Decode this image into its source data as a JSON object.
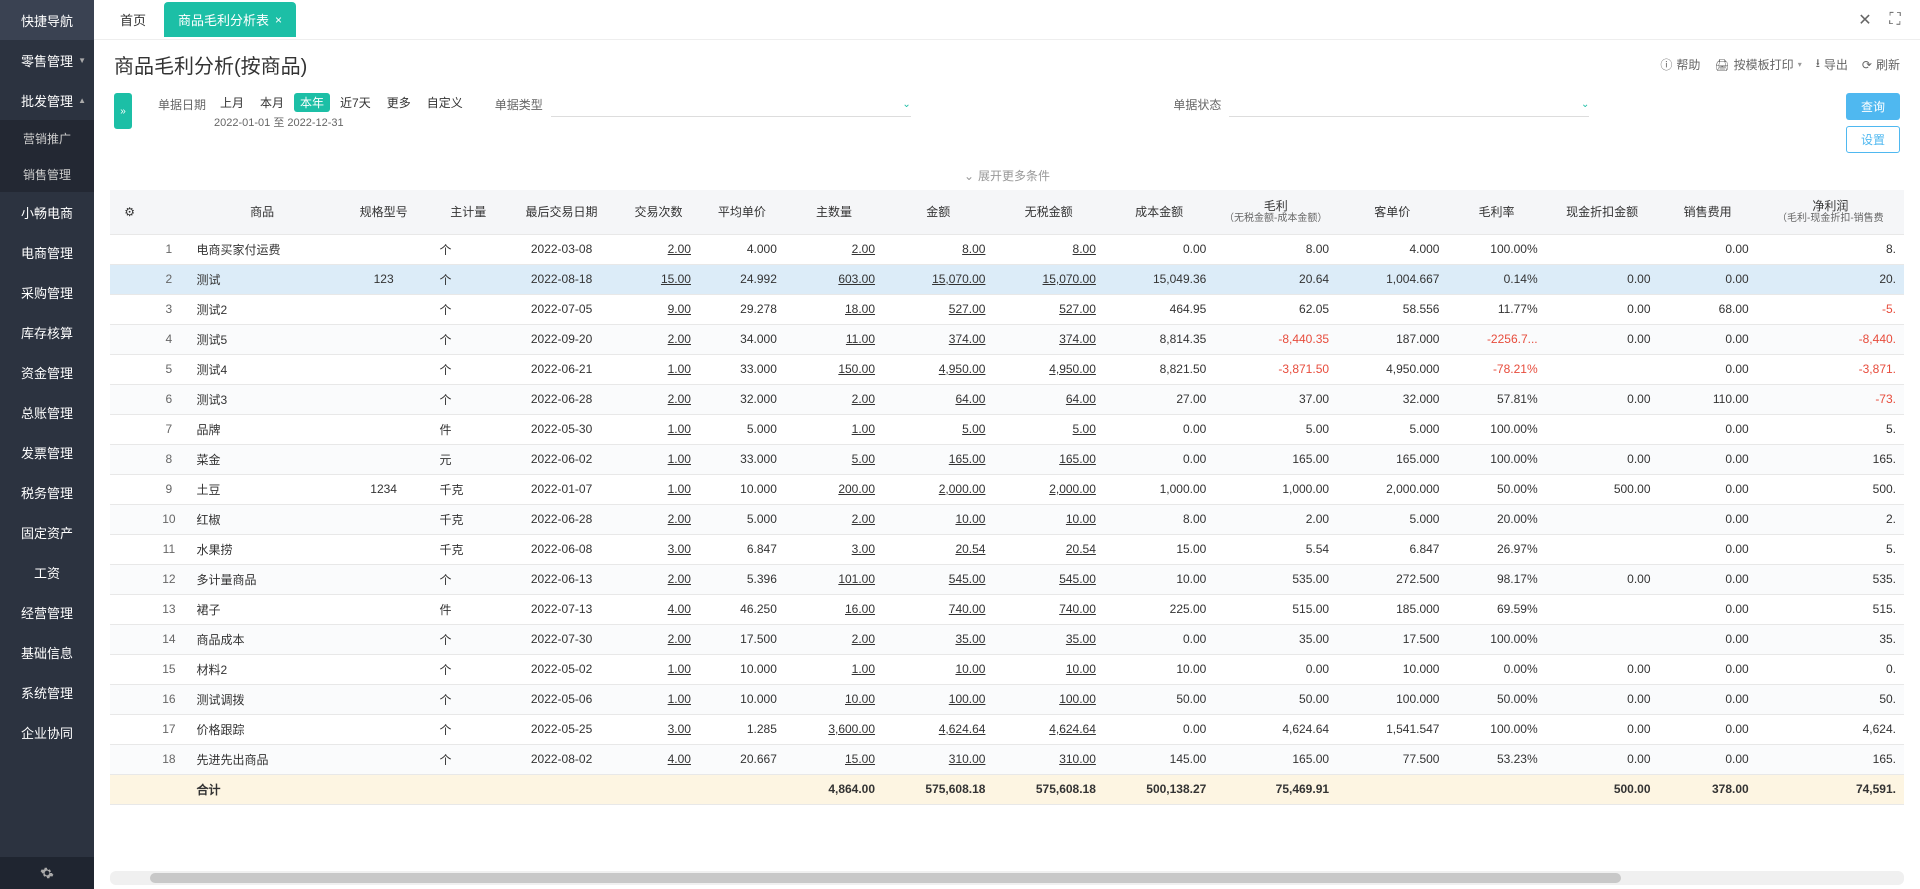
{
  "sidebar": {
    "items": [
      {
        "label": "快捷导航",
        "arrow": ""
      },
      {
        "label": "零售管理",
        "arrow": "▼"
      },
      {
        "label": "批发管理",
        "arrow": "▲",
        "expanded": true,
        "children": [
          {
            "label": "营销推广"
          },
          {
            "label": "销售管理"
          }
        ]
      },
      {
        "label": "小畅电商",
        "arrow": ""
      },
      {
        "label": "电商管理",
        "arrow": ""
      },
      {
        "label": "采购管理",
        "arrow": ""
      },
      {
        "label": "库存核算",
        "arrow": ""
      },
      {
        "label": "资金管理",
        "arrow": ""
      },
      {
        "label": "总账管理",
        "arrow": ""
      },
      {
        "label": "发票管理",
        "arrow": ""
      },
      {
        "label": "税务管理",
        "arrow": ""
      },
      {
        "label": "固定资产",
        "arrow": ""
      },
      {
        "label": "工资",
        "arrow": ""
      },
      {
        "label": "经营管理",
        "arrow": ""
      },
      {
        "label": "基础信息",
        "arrow": ""
      },
      {
        "label": "系统管理",
        "arrow": ""
      },
      {
        "label": "企业协同",
        "arrow": ""
      }
    ]
  },
  "tabs": {
    "home": "首页",
    "active": "商品毛利分析表"
  },
  "page": {
    "title": "商品毛利分析(按商品)",
    "actions": {
      "help": "帮助",
      "print": "按模板打印",
      "export": "导出",
      "refresh": "刷新"
    }
  },
  "filters": {
    "date_label": "单据日期",
    "date_opts": [
      "上月",
      "本月",
      "本年",
      "近7天",
      "更多",
      "自定义"
    ],
    "date_active": "本年",
    "date_range": "2022-01-01 至 2022-12-31",
    "doctype_label": "单据类型",
    "docstatus_label": "单据状态",
    "query": "查询",
    "settings": "设置",
    "more": "展开更多条件"
  },
  "columns": [
    {
      "key": "gear",
      "label": "⚙",
      "cls": "c-gear"
    },
    {
      "key": "idx",
      "label": "",
      "cls": "c-idx"
    },
    {
      "key": "name",
      "label": "商品",
      "cls": "c-name"
    },
    {
      "key": "spec",
      "label": "规格型号",
      "cls": "c-spec"
    },
    {
      "key": "unit",
      "label": "主计量",
      "cls": "c-unit"
    },
    {
      "key": "date",
      "label": "最后交易日期",
      "cls": "c-date"
    },
    {
      "key": "tx",
      "label": "交易次数",
      "cls": "c-tx"
    },
    {
      "key": "avgp",
      "label": "平均单价",
      "cls": "c-avgp"
    },
    {
      "key": "qty",
      "label": "主数量",
      "cls": "c-qty"
    },
    {
      "key": "amt",
      "label": "金额",
      "cls": "c-amt"
    },
    {
      "key": "notax",
      "label": "无税金额",
      "cls": "c-notax"
    },
    {
      "key": "cost",
      "label": "成本金额",
      "cls": "c-cost"
    },
    {
      "key": "gross",
      "label": "毛利",
      "sub": "（无税金额-成本金额）",
      "cls": "c-gross"
    },
    {
      "key": "unitp",
      "label": "客单价",
      "cls": "c-unitp"
    },
    {
      "key": "rate",
      "label": "毛利率",
      "cls": "c-rate"
    },
    {
      "key": "disc",
      "label": "现金折扣金额",
      "cls": "c-disc"
    },
    {
      "key": "fee",
      "label": "销售费用",
      "cls": "c-fee"
    },
    {
      "key": "net",
      "label": "净利润",
      "sub": "（毛利-现金折扣-销售费",
      "cls": "c-net"
    }
  ],
  "rows": [
    {
      "idx": 1,
      "name": "电商买家付运费",
      "spec": "",
      "unit": "个",
      "date": "2022-03-08",
      "tx": "2.00",
      "avgp": "4.000",
      "qty": "2.00",
      "amt": "8.00",
      "notax": "8.00",
      "cost": "0.00",
      "gross": "8.00",
      "unitp": "4.000",
      "rate": "100.00%",
      "disc": "",
      "fee": "0.00",
      "net": "8."
    },
    {
      "idx": 2,
      "name": "测试",
      "spec": "123",
      "unit": "个",
      "date": "2022-08-18",
      "tx": "15.00",
      "avgp": "24.992",
      "qty": "603.00",
      "amt": "15,070.00",
      "notax": "15,070.00",
      "cost": "15,049.36",
      "gross": "20.64",
      "unitp": "1,004.667",
      "rate": "0.14%",
      "disc": "0.00",
      "fee": "0.00",
      "net": "20.",
      "hl": true
    },
    {
      "idx": 3,
      "name": "测试2",
      "spec": "",
      "unit": "个",
      "date": "2022-07-05",
      "tx": "9.00",
      "avgp": "29.278",
      "qty": "18.00",
      "amt": "527.00",
      "notax": "527.00",
      "cost": "464.95",
      "gross": "62.05",
      "unitp": "58.556",
      "rate": "11.77%",
      "disc": "0.00",
      "fee": "68.00",
      "net": "-5.",
      "netneg": true
    },
    {
      "idx": 4,
      "name": "测试5",
      "spec": "",
      "unit": "个",
      "date": "2022-09-20",
      "tx": "2.00",
      "avgp": "34.000",
      "qty": "11.00",
      "amt": "374.00",
      "notax": "374.00",
      "cost": "8,814.35",
      "gross": "-8,440.35",
      "grossneg": true,
      "unitp": "187.000",
      "rate": "-2256.7...",
      "rateneg": true,
      "disc": "0.00",
      "fee": "0.00",
      "net": "-8,440.",
      "netneg": true
    },
    {
      "idx": 5,
      "name": "测试4",
      "spec": "",
      "unit": "个",
      "date": "2022-06-21",
      "tx": "1.00",
      "avgp": "33.000",
      "qty": "150.00",
      "amt": "4,950.00",
      "notax": "4,950.00",
      "cost": "8,821.50",
      "gross": "-3,871.50",
      "grossneg": true,
      "unitp": "4,950.000",
      "rate": "-78.21%",
      "rateneg": true,
      "disc": "",
      "fee": "0.00",
      "net": "-3,871.",
      "netneg": true
    },
    {
      "idx": 6,
      "name": "测试3",
      "spec": "",
      "unit": "个",
      "date": "2022-06-28",
      "tx": "2.00",
      "avgp": "32.000",
      "qty": "2.00",
      "amt": "64.00",
      "notax": "64.00",
      "cost": "27.00",
      "gross": "37.00",
      "unitp": "32.000",
      "rate": "57.81%",
      "disc": "0.00",
      "fee": "110.00",
      "net": "-73.",
      "netneg": true
    },
    {
      "idx": 7,
      "name": "品牌",
      "spec": "",
      "unit": "件",
      "date": "2022-05-30",
      "tx": "1.00",
      "avgp": "5.000",
      "qty": "1.00",
      "amt": "5.00",
      "notax": "5.00",
      "cost": "0.00",
      "gross": "5.00",
      "unitp": "5.000",
      "rate": "100.00%",
      "disc": "",
      "fee": "0.00",
      "net": "5."
    },
    {
      "idx": 8,
      "name": "菜金",
      "spec": "",
      "unit": "元",
      "date": "2022-06-02",
      "tx": "1.00",
      "avgp": "33.000",
      "qty": "5.00",
      "amt": "165.00",
      "notax": "165.00",
      "cost": "0.00",
      "gross": "165.00",
      "unitp": "165.000",
      "rate": "100.00%",
      "disc": "0.00",
      "fee": "0.00",
      "net": "165."
    },
    {
      "idx": 9,
      "name": "土豆",
      "spec": "1234",
      "unit": "千克",
      "date": "2022-01-07",
      "tx": "1.00",
      "avgp": "10.000",
      "qty": "200.00",
      "amt": "2,000.00",
      "notax": "2,000.00",
      "cost": "1,000.00",
      "gross": "1,000.00",
      "unitp": "2,000.000",
      "rate": "50.00%",
      "disc": "500.00",
      "fee": "0.00",
      "net": "500."
    },
    {
      "idx": 10,
      "name": "红椒",
      "spec": "",
      "unit": "千克",
      "date": "2022-06-28",
      "tx": "2.00",
      "avgp": "5.000",
      "qty": "2.00",
      "amt": "10.00",
      "notax": "10.00",
      "cost": "8.00",
      "gross": "2.00",
      "unitp": "5.000",
      "rate": "20.00%",
      "disc": "",
      "fee": "0.00",
      "net": "2."
    },
    {
      "idx": 11,
      "name": "水果捞",
      "spec": "",
      "unit": "千克",
      "date": "2022-06-08",
      "tx": "3.00",
      "avgp": "6.847",
      "qty": "3.00",
      "amt": "20.54",
      "notax": "20.54",
      "cost": "15.00",
      "gross": "5.54",
      "unitp": "6.847",
      "rate": "26.97%",
      "disc": "",
      "fee": "0.00",
      "net": "5."
    },
    {
      "idx": 12,
      "name": "多计量商品",
      "spec": "",
      "unit": "个",
      "date": "2022-06-13",
      "tx": "2.00",
      "avgp": "5.396",
      "qty": "101.00",
      "amt": "545.00",
      "notax": "545.00",
      "cost": "10.00",
      "gross": "535.00",
      "unitp": "272.500",
      "rate": "98.17%",
      "disc": "0.00",
      "fee": "0.00",
      "net": "535."
    },
    {
      "idx": 13,
      "name": "裙子",
      "spec": "",
      "unit": "件",
      "date": "2022-07-13",
      "tx": "4.00",
      "avgp": "46.250",
      "qty": "16.00",
      "amt": "740.00",
      "notax": "740.00",
      "cost": "225.00",
      "gross": "515.00",
      "unitp": "185.000",
      "rate": "69.59%",
      "disc": "",
      "fee": "0.00",
      "net": "515."
    },
    {
      "idx": 14,
      "name": "商品成本",
      "spec": "",
      "unit": "个",
      "date": "2022-07-30",
      "tx": "2.00",
      "avgp": "17.500",
      "qty": "2.00",
      "amt": "35.00",
      "notax": "35.00",
      "cost": "0.00",
      "gross": "35.00",
      "unitp": "17.500",
      "rate": "100.00%",
      "disc": "",
      "fee": "0.00",
      "net": "35."
    },
    {
      "idx": 15,
      "name": "材料2",
      "spec": "",
      "unit": "个",
      "date": "2022-05-02",
      "tx": "1.00",
      "avgp": "10.000",
      "qty": "1.00",
      "amt": "10.00",
      "notax": "10.00",
      "cost": "10.00",
      "gross": "0.00",
      "unitp": "10.000",
      "rate": "0.00%",
      "disc": "0.00",
      "fee": "0.00",
      "net": "0."
    },
    {
      "idx": 16,
      "name": "测试调拨",
      "spec": "",
      "unit": "个",
      "date": "2022-05-06",
      "tx": "1.00",
      "avgp": "10.000",
      "qty": "10.00",
      "amt": "100.00",
      "notax": "100.00",
      "cost": "50.00",
      "gross": "50.00",
      "unitp": "100.000",
      "rate": "50.00%",
      "disc": "0.00",
      "fee": "0.00",
      "net": "50."
    },
    {
      "idx": 17,
      "name": "价格跟踪",
      "spec": "",
      "unit": "个",
      "date": "2022-05-25",
      "tx": "3.00",
      "avgp": "1.285",
      "qty": "3,600.00",
      "amt": "4,624.64",
      "notax": "4,624.64",
      "cost": "0.00",
      "gross": "4,624.64",
      "unitp": "1,541.547",
      "rate": "100.00%",
      "disc": "0.00",
      "fee": "0.00",
      "net": "4,624."
    },
    {
      "idx": 18,
      "name": "先进先出商品",
      "spec": "",
      "unit": "个",
      "date": "2022-08-02",
      "tx": "4.00",
      "avgp": "20.667",
      "qty": "15.00",
      "amt": "310.00",
      "notax": "310.00",
      "cost": "145.00",
      "gross": "165.00",
      "unitp": "77.500",
      "rate": "53.23%",
      "disc": "0.00",
      "fee": "0.00",
      "net": "165."
    }
  ],
  "footer": {
    "label": "合计",
    "qty": "4,864.00",
    "amt": "575,608.18",
    "notax": "575,608.18",
    "cost": "500,138.27",
    "gross": "75,469.91",
    "disc": "500.00",
    "fee": "378.00",
    "net": "74,591."
  }
}
